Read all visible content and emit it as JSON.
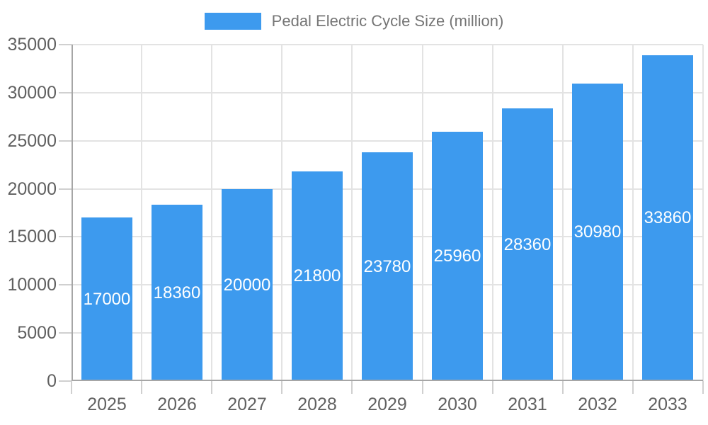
{
  "legend": {
    "label": "Pedal Electric Cycle Size (million)"
  },
  "chart_data": {
    "type": "bar",
    "title": "Pedal Electric Cycle Size (million)",
    "categories": [
      "2025",
      "2026",
      "2027",
      "2028",
      "2029",
      "2030",
      "2031",
      "2032",
      "2033"
    ],
    "series": [
      {
        "name": "Pedal Electric Cycle Size (million)",
        "values": [
          17000,
          18360,
          20000,
          21800,
          23780,
          25960,
          28360,
          30980,
          33860
        ]
      }
    ],
    "bar_value_labels": [
      "17000",
      "18360",
      "20000",
      "21800",
      "23780",
      "25960",
      "28360",
      "30980",
      "33860"
    ],
    "xlabel": "",
    "ylabel": "",
    "ylim": [
      0,
      35000
    ],
    "yticks": [
      0,
      5000,
      10000,
      15000,
      20000,
      25000,
      30000,
      35000
    ],
    "ytick_labels": [
      "0",
      "5000",
      "10000",
      "15000",
      "20000",
      "25000",
      "30000",
      "35000"
    ],
    "grid": true,
    "legend_position": "top"
  },
  "colors": {
    "bar": "#3D9AEE",
    "bar_label_text": "#FFFFFF",
    "axis_line": "#A6A6A6",
    "gridline": "#E3E3E3",
    "tick_mark": "#D0D0D0",
    "tick_label_text": "#616161",
    "legend_text": "#757575",
    "background": "#FFFFFF"
  }
}
